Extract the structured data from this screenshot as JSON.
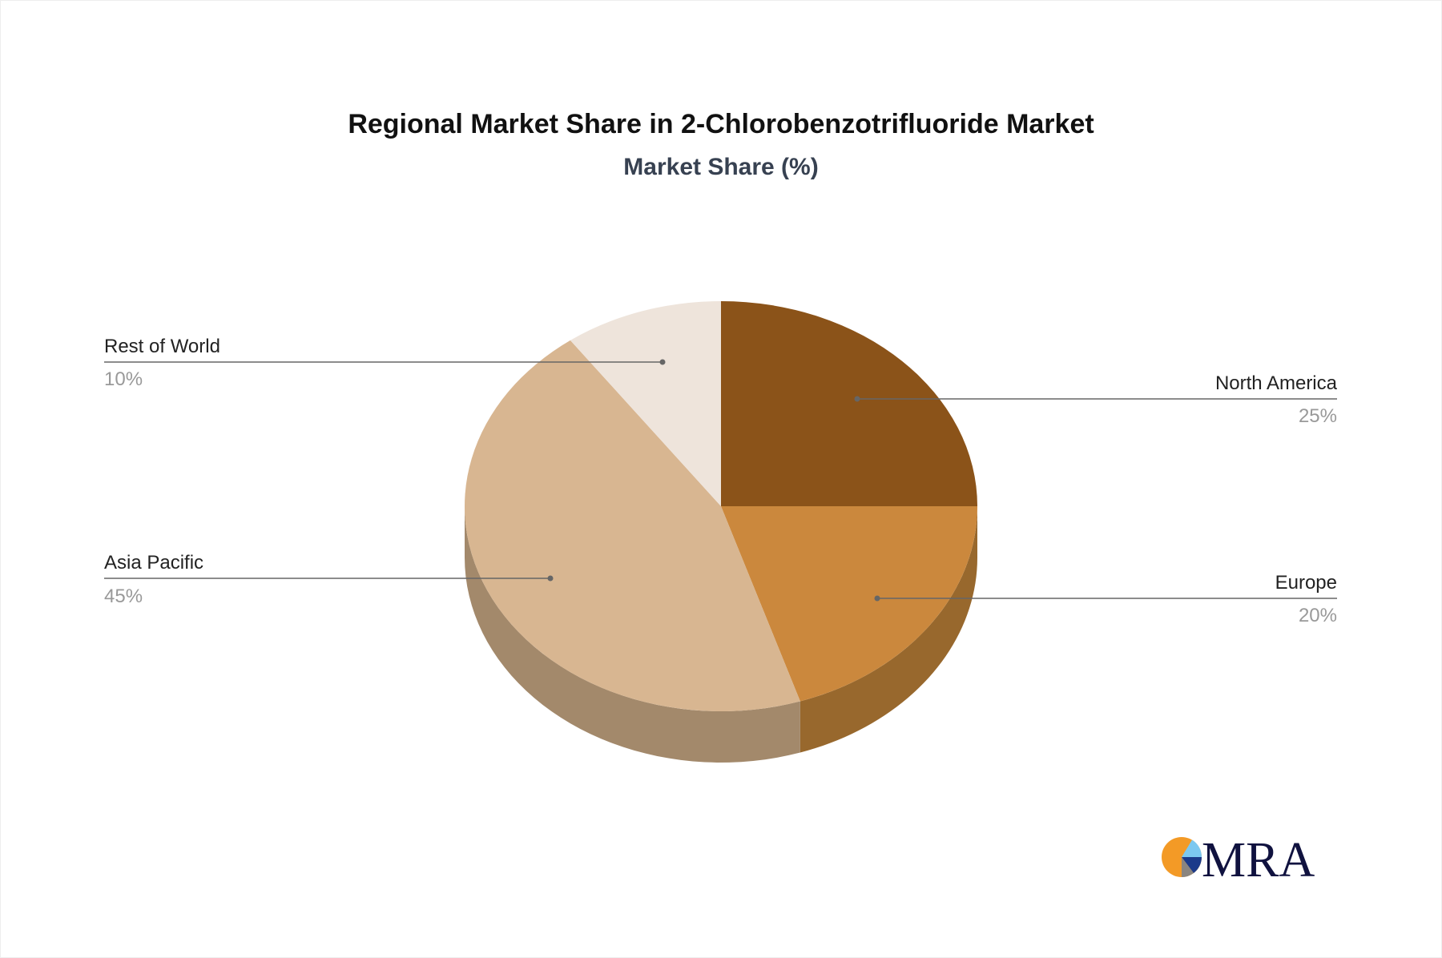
{
  "chart_data": {
    "type": "pie",
    "title": "Regional Market Share in 2-Chlorobenzotrifluoride Market",
    "subtitle": "Market Share (%)",
    "three_d": true,
    "slices": [
      {
        "label": "North America",
        "value": 25,
        "pct_label": "25%",
        "color": "#8B5319",
        "side_color": "#6F4214"
      },
      {
        "label": "Europe",
        "value": 20,
        "pct_label": "20%",
        "color": "#CB883D",
        "side_color": "#98682D"
      },
      {
        "label": "Asia Pacific",
        "value": 45,
        "pct_label": "45%",
        "color": "#D8B691",
        "side_color": "#A3896B"
      },
      {
        "label": "Rest of World",
        "value": 10,
        "pct_label": "10%",
        "color": "#EEE4DB",
        "side_color": "#B9AEA4"
      }
    ]
  },
  "logo": {
    "text": "MRA",
    "colors": [
      "#F39A26",
      "#7CC8F0",
      "#1B3A8A",
      "#8A8580",
      "#10123F"
    ]
  }
}
